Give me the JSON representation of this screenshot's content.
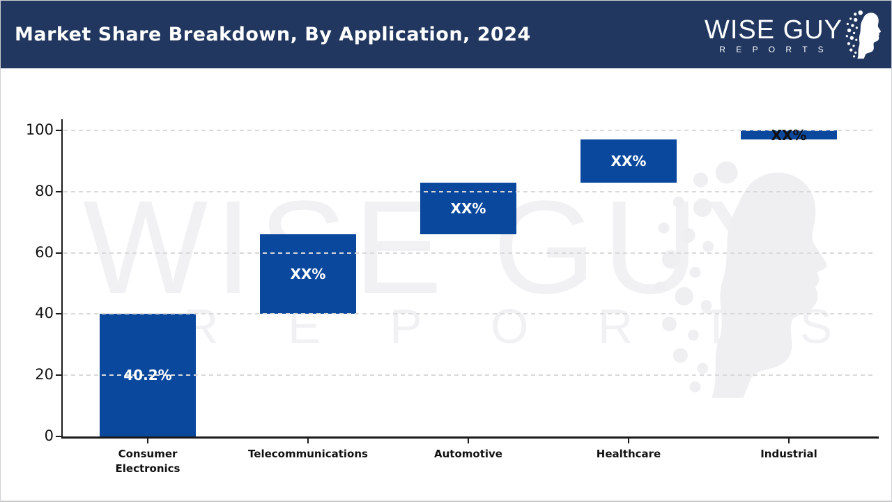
{
  "header": {
    "title": "Market Share Breakdown, By Application, 2024",
    "logo": {
      "line1": "WISE GUY",
      "line2": "R E P O R T S"
    }
  },
  "watermark": {
    "line1": "WISE GUY",
    "line2": "R E P O R T S"
  },
  "chart_data": {
    "type": "bar",
    "subtype": "waterfall",
    "title": "Market Share Breakdown, By Application, 2024",
    "categories": [
      "Consumer Electronics",
      "Telecommunications",
      "Automotive",
      "Healthcare",
      "Industrial"
    ],
    "categories_display": [
      "Consumer\nElectronics",
      "Telecommunications",
      "Automotive",
      "Healthcare",
      "Industrial"
    ],
    "segments": [
      {
        "category": "Consumer Electronics",
        "start": 0,
        "end": 40.2,
        "label": "40.2%",
        "label_color": "#ffffff"
      },
      {
        "category": "Telecommunications",
        "start": 40.2,
        "end": 66,
        "label": "XX%",
        "label_color": "#ffffff"
      },
      {
        "category": "Automotive",
        "start": 66,
        "end": 83,
        "label": "XX%",
        "label_color": "#ffffff"
      },
      {
        "category": "Healthcare",
        "start": 83,
        "end": 97,
        "label": "XX%",
        "label_color": "#ffffff"
      },
      {
        "category": "Industrial",
        "start": 97,
        "end": 100,
        "label": "XX%",
        "label_color": "#111111"
      }
    ],
    "bar_color": "#0a489d",
    "ylim": [
      0,
      100
    ],
    "yticks": [
      0,
      20,
      40,
      60,
      80,
      100
    ],
    "xlabel": "",
    "ylabel": "",
    "grid": "horizontal-dashed-above-bars",
    "legend": "none"
  },
  "colors": {
    "header_bg": "#21375f",
    "bar": "#0a489d",
    "gridline": "#d9d9d9",
    "axis": "#1a1a1a",
    "watermark": "#f1f1f3"
  }
}
